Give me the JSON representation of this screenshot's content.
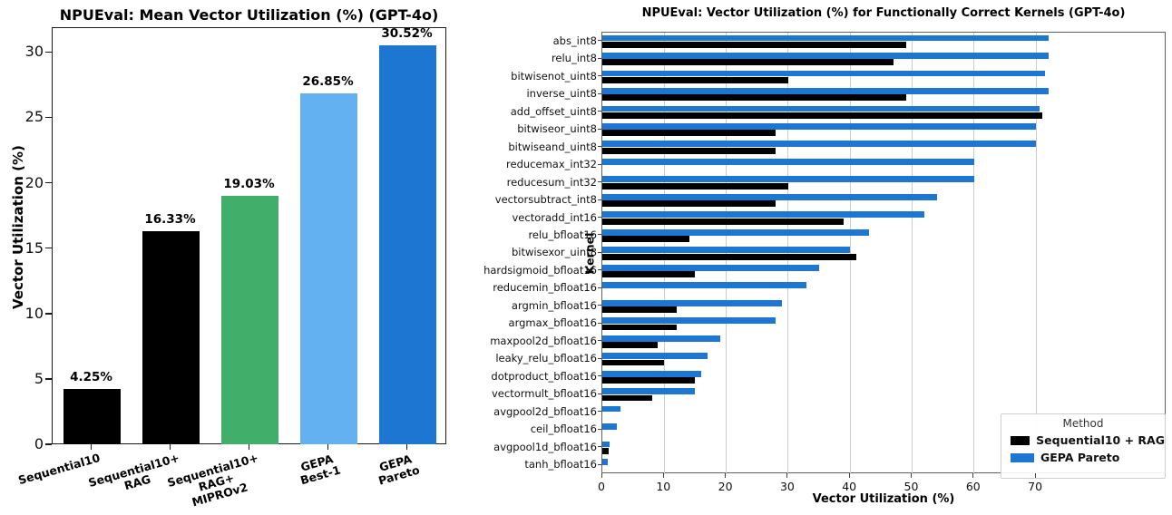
{
  "figure": {
    "background": "#ffffff"
  },
  "chart_data": [
    {
      "type": "bar",
      "title": "NPUEval: Mean Vector Utilization (%) (GPT-4o)",
      "xlabel": "",
      "ylabel": "Vector Utilization (%)",
      "ylim": [
        0,
        31.9
      ],
      "ytick_labels": [
        "0",
        "5",
        "10",
        "15",
        "20",
        "25",
        "30"
      ],
      "yticks": [
        0,
        5,
        10,
        15,
        20,
        25,
        30
      ],
      "grid": false,
      "categories": [
        "Sequential10",
        "Sequential10+\nRAG",
        "Sequential10+\nRAG+\nMIPROv2",
        "GEPA\nBest-1",
        "GEPA\nPareto"
      ],
      "values": [
        4.25,
        16.33,
        19.03,
        26.85,
        30.52
      ],
      "value_labels": [
        "4.25%",
        "16.33%",
        "19.03%",
        "26.85%",
        "30.52%"
      ],
      "bar_colors": [
        "#000000",
        "#000000",
        "#41ae69",
        "#63b1f0",
        "#1d76d2"
      ]
    },
    {
      "type": "bar-horizontal-grouped",
      "title": "NPUEval: Vector Utilization (%) for Functionally Correct Kernels (GPT-4o)",
      "xlabel": "Vector Utilization (%)",
      "ylabel": "Kernel",
      "xlim": [
        0,
        91
      ],
      "xticks": [
        0,
        10,
        20,
        30,
        40,
        50,
        60,
        70
      ],
      "xtick_labels": [
        "0",
        "10",
        "20",
        "30",
        "40",
        "50",
        "60",
        "70"
      ],
      "grid": true,
      "legend": {
        "title": "Method",
        "position": "lower right",
        "entries": [
          {
            "label": "Sequential10 + RAG",
            "color": "#000000"
          },
          {
            "label": "GEPA Pareto",
            "color": "#1d76d2"
          }
        ]
      },
      "categories": [
        "abs_int8",
        "relu_int8",
        "bitwisenot_uint8",
        "inverse_uint8",
        "add_offset_uint8",
        "bitwiseor_uint8",
        "bitwiseand_uint8",
        "reducemax_int32",
        "reducesum_int32",
        "vectorsubtract_int8",
        "vectoradd_int16",
        "relu_bfloat16",
        "bitwisexor_uint8",
        "hardsigmoid_bfloat16",
        "reducemin_bfloat16",
        "argmin_bfloat16",
        "argmax_bfloat16",
        "maxpool2d_bfloat16",
        "leaky_relu_bfloat16",
        "dotproduct_bfloat16",
        "vectormult_bfloat16",
        "avgpool2d_bfloat16",
        "ceil_bfloat16",
        "avgpool1d_bfloat16",
        "tanh_bfloat16"
      ],
      "series": [
        {
          "name": "Sequential10 + RAG",
          "color": "#000000",
          "values": [
            49,
            47,
            30,
            49,
            71,
            28,
            28,
            0,
            30,
            28,
            39,
            14,
            41,
            15,
            0,
            12,
            12,
            9,
            10,
            15,
            8,
            0,
            0,
            1,
            0
          ]
        },
        {
          "name": "GEPA Pareto",
          "color": "#1d76d2",
          "values": [
            72,
            72,
            71.5,
            72,
            70.5,
            70,
            70,
            60,
            60,
            54,
            52,
            43,
            40,
            35,
            33,
            29,
            28,
            19,
            17,
            16,
            15,
            3,
            2.3,
            1.2,
            0.9
          ]
        }
      ]
    }
  ]
}
